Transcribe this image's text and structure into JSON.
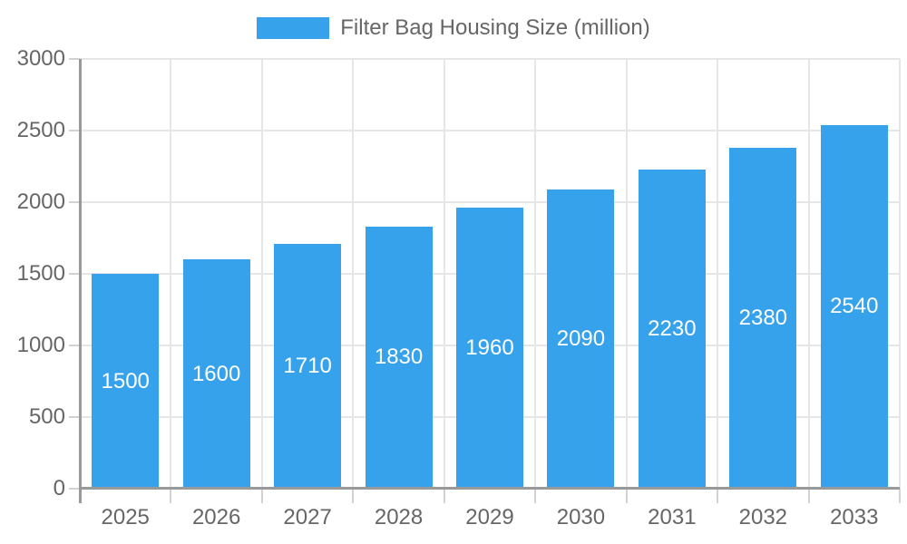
{
  "chart_data": {
    "type": "bar",
    "title": "Filter Bag Housing Size (million)",
    "categories": [
      "2025",
      "2026",
      "2027",
      "2028",
      "2029",
      "2030",
      "2031",
      "2032",
      "2033"
    ],
    "values": [
      1500,
      1600,
      1710,
      1830,
      1960,
      2090,
      2230,
      2380,
      2540
    ],
    "series": [
      {
        "name": "Filter Bag Housing Size (million)",
        "values": [
          1500,
          1600,
          1710,
          1830,
          1960,
          2090,
          2230,
          2380,
          2540
        ]
      }
    ],
    "xlabel": "",
    "ylabel": "",
    "ylim": [
      0,
      3000
    ],
    "ytick_step": 500,
    "yticks": [
      0,
      500,
      1000,
      1500,
      2000,
      2500,
      3000
    ],
    "grid": true,
    "legend_position": "top",
    "bar_color": "#36A2EB",
    "bar_label_color": "#FFFFFF",
    "axis_text_color": "#666666"
  }
}
